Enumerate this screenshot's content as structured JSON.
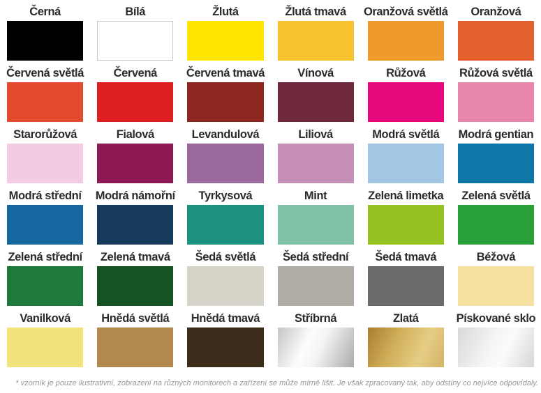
{
  "palette": {
    "gradient_angle_deg": 115,
    "swatches": [
      {
        "label": "Černá",
        "hex": "#000000"
      },
      {
        "label": "Bílá",
        "hex": "#ffffff",
        "border": "#c9c9c9"
      },
      {
        "label": "Žlutá",
        "hex": "#ffe500"
      },
      {
        "label": "Žlutá tmavá",
        "hex": "#f7c22e"
      },
      {
        "label": "Oranžová světlá",
        "hex": "#f0992c"
      },
      {
        "label": "Oranžová",
        "hex": "#e4602c"
      },
      {
        "label": "Červená světlá",
        "hex": "#e24b2e"
      },
      {
        "label": "Červená",
        "hex": "#dd1f1f"
      },
      {
        "label": "Červená tmavá",
        "hex": "#8d2520"
      },
      {
        "label": "Vínová",
        "hex": "#6e2a3b"
      },
      {
        "label": "Růžová",
        "hex": "#e5097d"
      },
      {
        "label": "Růžová světlá",
        "hex": "#e986ad"
      },
      {
        "label": "Starorůžová",
        "hex": "#f3cce1"
      },
      {
        "label": "Fialová",
        "hex": "#8e1a55"
      },
      {
        "label": "Levandulová",
        "hex": "#9b699e"
      },
      {
        "label": "Liliová",
        "hex": "#c68fb8"
      },
      {
        "label": "Modrá světlá",
        "hex": "#a4c6e5"
      },
      {
        "label": "Modrá gentian",
        "hex": "#0f76a8"
      },
      {
        "label": "Modrá střední",
        "hex": "#15689f"
      },
      {
        "label": "Modrá námořní",
        "hex": "#153a5c"
      },
      {
        "label": "Tyrkysová",
        "hex": "#1d9180"
      },
      {
        "label": "Mint",
        "hex": "#80c2a8"
      },
      {
        "label": "Zelená limetka",
        "hex": "#96c226"
      },
      {
        "label": "Zelená světlá",
        "hex": "#2aa038"
      },
      {
        "label": "Zelená střední",
        "hex": "#1e7a3c"
      },
      {
        "label": "Zelená tmavá",
        "hex": "#165323"
      },
      {
        "label": "Šedá světlá",
        "hex": "#d6d3c9"
      },
      {
        "label": "Šedá střední",
        "hex": "#aeaca4"
      },
      {
        "label": "Šedá tmavá",
        "hex": "#6b6b6b"
      },
      {
        "label": "Béžová",
        "hex": "#f5e0a2"
      },
      {
        "label": "Vanilková",
        "hex": "#f2e37d"
      },
      {
        "label": "Hnědá světlá",
        "hex": "#b1894f"
      },
      {
        "label": "Hnědá tmavá",
        "hex": "#3b2d1a"
      },
      {
        "label": "Stříbrná",
        "stops": [
          "#c6c6c6 0%",
          "#fdfdfd 38%",
          "#f4f4f4 55%",
          "#ababab 100%"
        ]
      },
      {
        "label": "Zlatá",
        "stops": [
          "#aa7d2e 0%",
          "#cfae58 35%",
          "#e6cd85 70%",
          "#d3b264 100%"
        ]
      },
      {
        "label": "Pískované sklo",
        "stops": [
          "#d8dada 0%",
          "#f4f5f5 45%",
          "#fbfbfb 62%",
          "#d4d6d6 100%"
        ]
      }
    ]
  },
  "footnote": {
    "text": "* vzorník je pouze ilustrativní, zobrazení na různých monitorech a zařízení se může mírně lišit. Je však zpracovaný tak, aby odstíny co nejvíce odpovídaly."
  }
}
